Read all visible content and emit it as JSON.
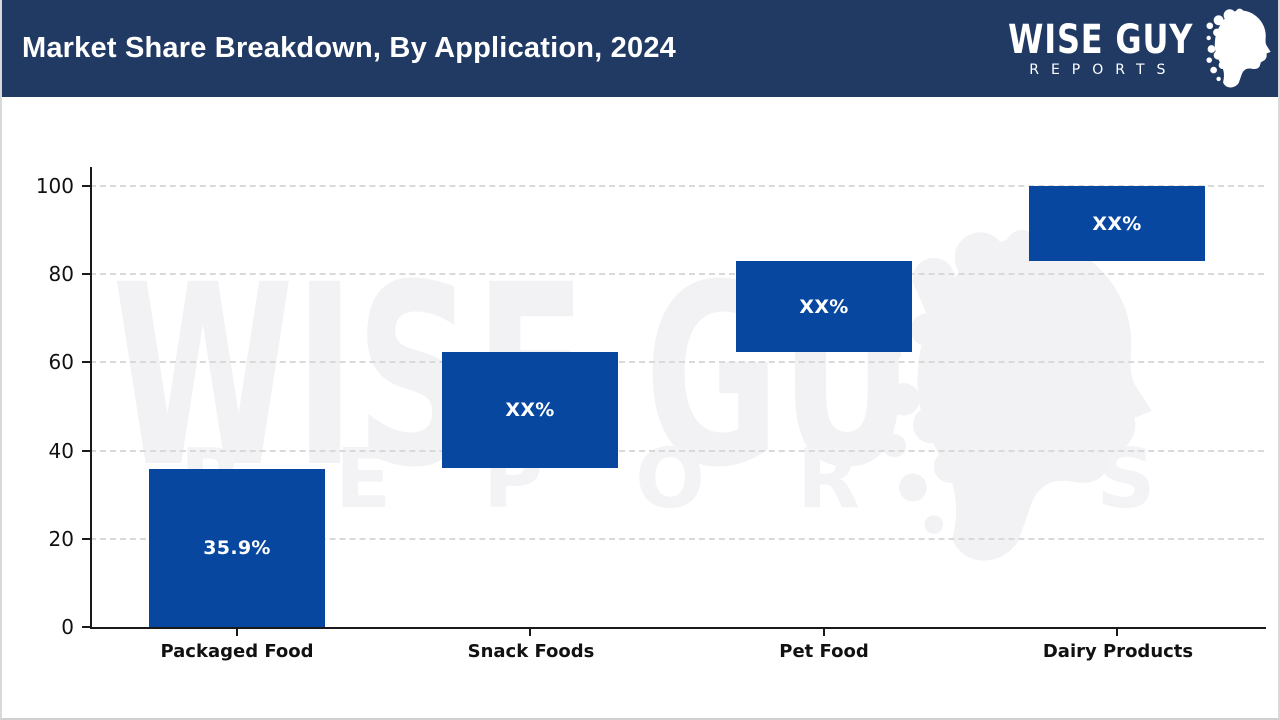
{
  "header": {
    "title": "Market Share Breakdown, By Application, 2024",
    "logo": {
      "line1": "WISE GUY",
      "line2": "REPORTS"
    }
  },
  "watermark": {
    "line1": "WISE GUY",
    "line2": "REPORTS"
  },
  "colors": {
    "header_bg": "#213A64",
    "bar_blue": "#0847A0",
    "gridline_gray": "#d9d9d9",
    "axis_black": "#1a1a1a",
    "watermark_gray": "#f2f2f5",
    "text_white": "#ffffff"
  },
  "chart_data": {
    "type": "bar",
    "subtype": "waterfall",
    "title": "Market Share Breakdown, By Application, 2024",
    "categories": [
      "Packaged Food",
      "Snack Foods",
      "Pet Food",
      "Dairy Products"
    ],
    "segments": [
      {
        "category": "Packaged Food",
        "start": 0,
        "end": 35.9,
        "label": "35.9%"
      },
      {
        "category": "Snack Foods",
        "start": 35.9,
        "end": 62.3,
        "label": "XX%"
      },
      {
        "category": "Pet Food",
        "start": 62.3,
        "end": 83.0,
        "label": "XX%"
      },
      {
        "category": "Dairy Products",
        "start": 83.0,
        "end": 100.0,
        "label": "XX%"
      }
    ],
    "ylim": [
      0,
      100
    ],
    "yticks": [
      0,
      20,
      40,
      60,
      80,
      100
    ],
    "xlabel": "",
    "ylabel": "",
    "grid": "horizontal-dashed",
    "legend": "none",
    "bar_color": "#0847A0"
  }
}
